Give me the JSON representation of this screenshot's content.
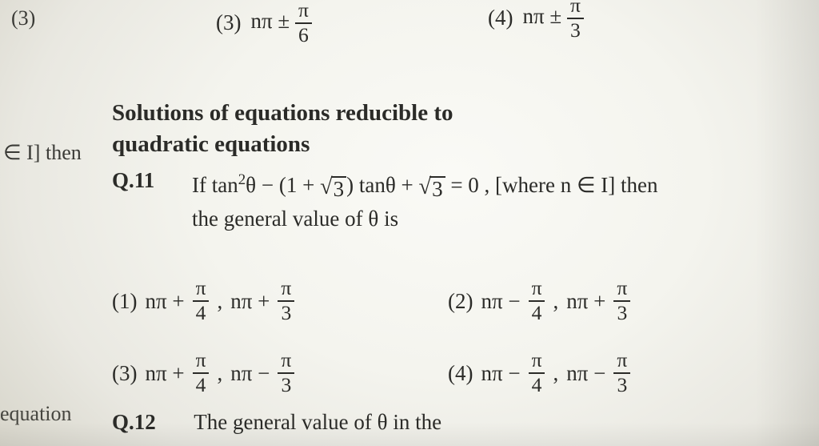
{
  "page": {
    "background_colors": {
      "center": "#fafaf6",
      "mid": "#e9e8e1",
      "edge": "#b8b6a9"
    },
    "text_color": "#2b2b28",
    "font_family": "Georgia, Times New Roman, serif",
    "base_fontsize_pt": 20
  },
  "gutter": {
    "number": "(3)",
    "in_I_then": "∈ I] then",
    "equation_word": "equation"
  },
  "top_options": {
    "opt3": {
      "label": "(3)",
      "expr_prefix": "nπ ±",
      "frac_num": "π",
      "frac_den": "6"
    },
    "opt4": {
      "label": "(4)",
      "expr_prefix": "nπ ±",
      "frac_num": "π",
      "frac_den": "3"
    }
  },
  "heading": {
    "line1": "Solutions of equations reducible to",
    "line2": "quadratic equations"
  },
  "q11": {
    "label": "Q.11",
    "stem_prefix": "If  tan",
    "stem_sup": "2",
    "stem_mid1": "θ − (1 + ",
    "stem_sqrt1": "3",
    "stem_mid2": ") tanθ + ",
    "stem_sqrt2": "3",
    "stem_mid3": " = 0 , [where n ∈ I] then",
    "stem_line2": "the general value of θ is",
    "options": {
      "o1": {
        "label": "(1)",
        "a_prefix": "nπ +",
        "a_num": "π",
        "a_den": "4",
        "sep": ",",
        "b_prefix": "nπ +",
        "b_num": "π",
        "b_den": "3"
      },
      "o2": {
        "label": "(2)",
        "a_prefix": "nπ −",
        "a_num": "π",
        "a_den": "4",
        "sep": ",",
        "b_prefix": "nπ +",
        "b_num": "π",
        "b_den": "3"
      },
      "o3": {
        "label": "(3)",
        "a_prefix": "nπ +",
        "a_num": "π",
        "a_den": "4",
        "sep": ",",
        "b_prefix": "nπ −",
        "b_num": "π",
        "b_den": "3"
      },
      "o4": {
        "label": "(4)",
        "a_prefix": "nπ −",
        "a_num": "π",
        "a_den": "4",
        "sep": ",",
        "b_prefix": "nπ −",
        "b_num": "π",
        "b_den": "3"
      }
    }
  },
  "q12": {
    "label": "Q.12",
    "stem": "The general value of θ in the"
  }
}
